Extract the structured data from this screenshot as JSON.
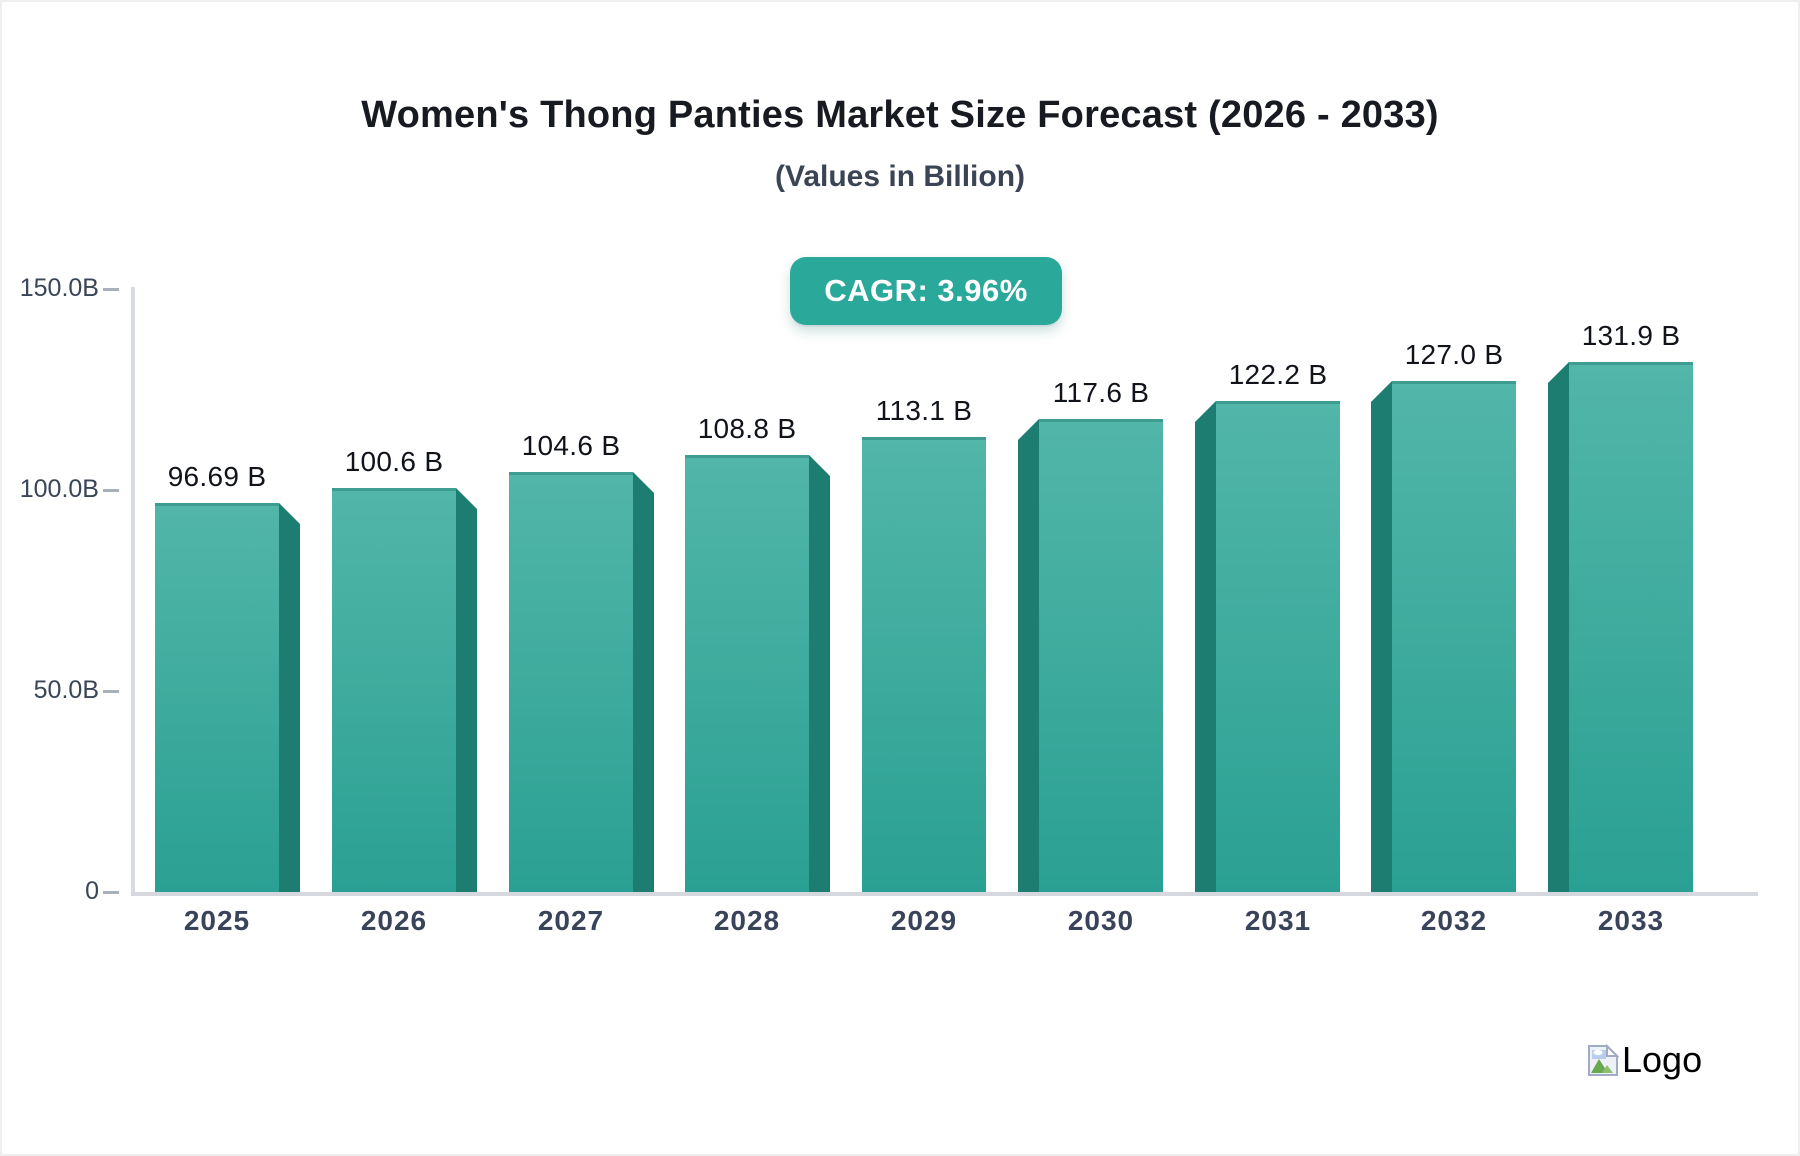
{
  "header": {
    "title": "Women's Thong Panties Market Size Forecast (2026 - 2033)",
    "subtitle": "(Values in Billion)",
    "cagr_label": "CAGR: 3.96%"
  },
  "footer": {
    "logo_text": "Logo",
    "logo_icon": "broken-image-icon"
  },
  "colors": {
    "bar_gradient_top": "#52b6a9",
    "bar_gradient_bottom": "#2aa093",
    "bar_side_face": "#1d7d71",
    "badge_background": "#2aa99b",
    "badge_text": "#ffffff",
    "axis_line": "#d8dce2",
    "tick_mark": "#a9b0ba",
    "title_text": "#171a20",
    "subtitle_text": "#3b4454",
    "axis_label_text": "#3a4558",
    "year_label_text": "#39435a",
    "value_label_text": "#10131a"
  },
  "chart_data": {
    "type": "bar",
    "title": "Women's Thong Panties Market Size Forecast (2026 - 2033)",
    "subtitle": "(Values in Billion)",
    "cagr_percent": 3.96,
    "categories": [
      "2025",
      "2026",
      "2027",
      "2028",
      "2029",
      "2030",
      "2031",
      "2032",
      "2033"
    ],
    "values": [
      96.69,
      100.6,
      104.6,
      108.8,
      113.1,
      117.6,
      122.2,
      127.0,
      131.9
    ],
    "value_labels": [
      "96.69 B",
      "100.6 B",
      "104.6 B",
      "108.8 B",
      "113.1 B",
      "117.6 B",
      "122.2 B",
      "127.0 B",
      "131.9 B"
    ],
    "unit": "B",
    "xlabel": "",
    "ylabel": "",
    "ylim": [
      0,
      150
    ],
    "yticks": [
      {
        "value": 150,
        "label": "150.0B"
      },
      {
        "value": 100,
        "label": "100.0B"
      },
      {
        "value": 50,
        "label": "50.0B"
      },
      {
        "value": 0,
        "label": "0"
      }
    ],
    "grid": false,
    "legend": false,
    "style": "3d-beveled-bars"
  }
}
